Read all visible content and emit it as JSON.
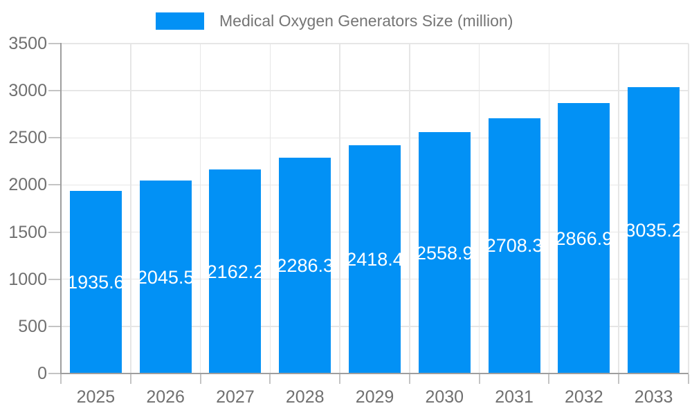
{
  "chart_data": {
    "type": "bar",
    "title": "Medical Oxygen Generators Size (million)",
    "categories": [
      "2025",
      "2026",
      "2027",
      "2028",
      "2029",
      "2030",
      "2031",
      "2032",
      "2033"
    ],
    "values": [
      1935.6,
      2045.5,
      2162.2,
      2286.3,
      2418.4,
      2558.9,
      2708.3,
      2866.9,
      3035.2
    ],
    "value_labels": [
      "1935.6",
      "2045.5",
      "2162.2",
      "2286.3",
      "2418.4",
      "2558.9",
      "2708.3",
      "2866.9",
      "3035.2"
    ],
    "xlabel": "",
    "ylabel": "",
    "ylim": [
      0,
      3500
    ],
    "yticks": [
      0,
      500,
      1000,
      1500,
      2000,
      2500,
      3000,
      3500
    ],
    "grid": true,
    "legend_position": "top",
    "colors": {
      "bar": "#0291f5",
      "value_label_text": "#ffffff",
      "axis_label_text": "#707070",
      "legend_text": "#757575",
      "gridline": "#e6e6e6",
      "axis_line": "#9e9e9e",
      "tick": "#c4c4c4",
      "background": "#ffffff"
    }
  }
}
